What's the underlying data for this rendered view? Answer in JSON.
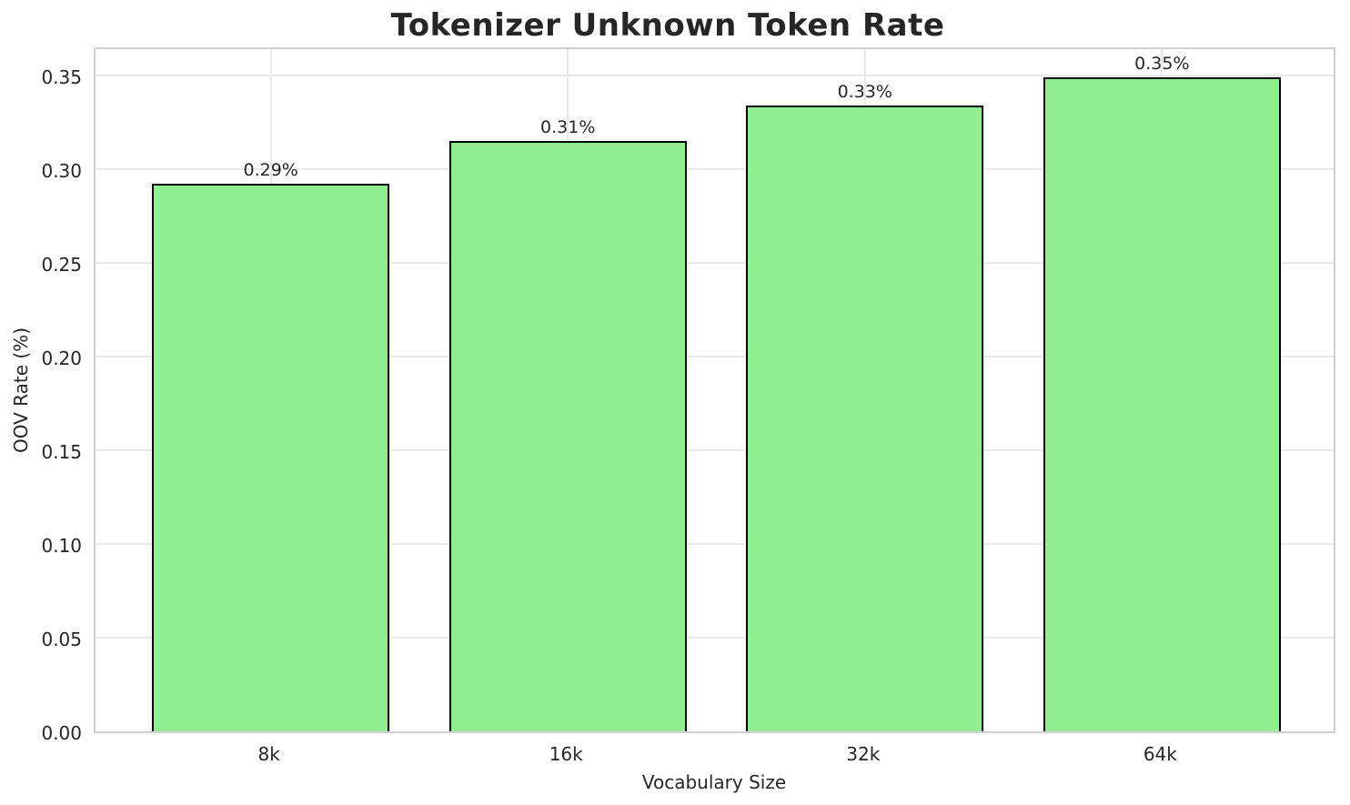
{
  "chart_data": {
    "type": "bar",
    "title": "Tokenizer Unknown Token Rate",
    "xlabel": "Vocabulary Size",
    "ylabel": "OOV Rate (%)",
    "categories": [
      "8k",
      "16k",
      "32k",
      "64k"
    ],
    "values": [
      0.292,
      0.315,
      0.334,
      0.349
    ],
    "bar_labels": [
      "0.29%",
      "0.31%",
      "0.33%",
      "0.35%"
    ],
    "ytick_labels": [
      "0.00",
      "0.05",
      "0.10",
      "0.15",
      "0.20",
      "0.25",
      "0.30",
      "0.35"
    ],
    "yticks": [
      0.0,
      0.05,
      0.1,
      0.15,
      0.2,
      0.25,
      0.3,
      0.35
    ],
    "ylim": [
      0,
      0.366
    ],
    "grid": true,
    "legend_position": "none",
    "colors": {
      "bar_fill": "#90EE90",
      "bar_edge": "#000000",
      "grid": "#e9e9e9",
      "spine": "#d0d0d0",
      "text": "#262626"
    }
  }
}
